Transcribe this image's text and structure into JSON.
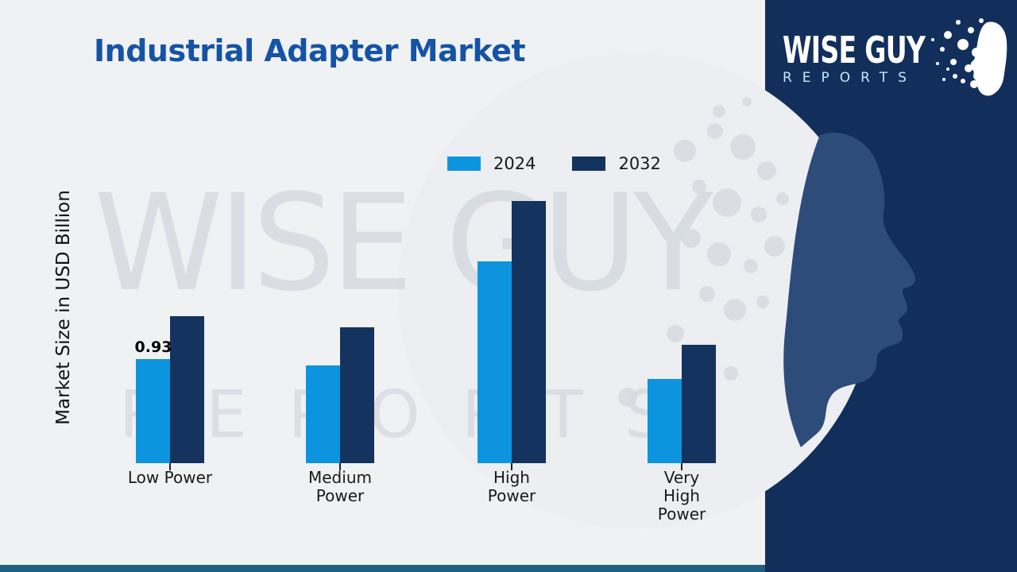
{
  "title": "Industrial Adapter Market",
  "brand": {
    "line1": "WISE GUY",
    "line2": "REPORTS"
  },
  "watermark": {
    "line1": "WISE GUY",
    "line2": "REPORTS"
  },
  "colors": {
    "background": "#F0F1F3",
    "title_blue": "#1553A5",
    "series_2024": "#0D94DE",
    "series_2032": "#14335F",
    "panel_navy": "#122F5C",
    "teal_strip": "#1E607E",
    "face_silhouette": "#2E4C79",
    "watermark_gray": "#C8CED7"
  },
  "chart_data": {
    "type": "bar",
    "title": "Industrial Adapter Market",
    "xlabel": "",
    "ylabel": "Market Size in USD Billion",
    "categories": [
      "Low Power",
      "Medium Power",
      "High Power",
      "Very High Power"
    ],
    "category_label_lines": [
      [
        "Low Power"
      ],
      [
        "Medium",
        "Power"
      ],
      [
        "High",
        "Power"
      ],
      [
        "Very",
        "High",
        "Power"
      ]
    ],
    "series": [
      {
        "name": "2024",
        "color": "#0D94DE",
        "values": [
          0.93,
          0.87,
          1.8,
          0.75
        ]
      },
      {
        "name": "2032",
        "color": "#14335F",
        "values": [
          1.31,
          1.21,
          2.34,
          1.06
        ]
      }
    ],
    "annotations": [
      {
        "series": "2024",
        "category": "Low Power",
        "text": "0.93"
      }
    ],
    "ylim": [
      0,
      2.6
    ],
    "grid": false,
    "legend_position": "top-center",
    "y_axis_ticks_visible": false
  }
}
